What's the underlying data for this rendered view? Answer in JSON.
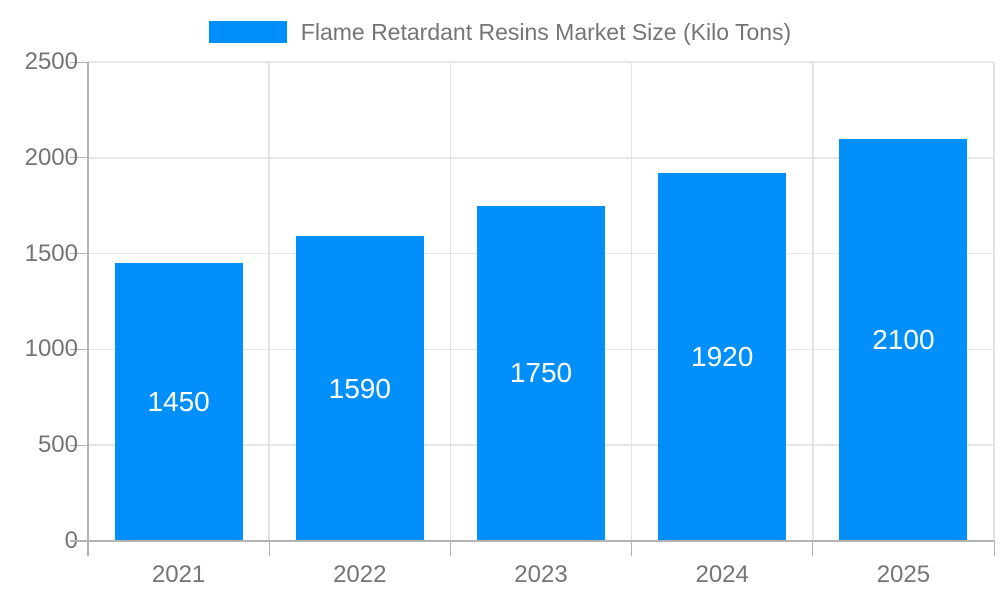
{
  "chart_data": {
    "type": "bar",
    "title": "Flame Retardant Resins Market Size (Kilo Tons)",
    "legend_label": "Flame Retardant Resins Market Size (Kilo Tons)",
    "categories": [
      "2021",
      "2022",
      "2023",
      "2024",
      "2025"
    ],
    "values": [
      1450,
      1590,
      1750,
      1920,
      2100
    ],
    "xlabel": "",
    "ylabel": "",
    "ylim": [
      0,
      2500
    ],
    "yticks": [
      0,
      500,
      1000,
      1500,
      2000,
      2500
    ],
    "grid": true,
    "legend_position": "top-center",
    "data_labels": "inside-center-white",
    "colors": {
      "bar": "#008FFB",
      "bar_label": "#FFFFFF",
      "axis_line": "#B3B3B3",
      "gridline": "#E6E6E6",
      "text": "#757575",
      "background": "#FFFFFF"
    }
  }
}
